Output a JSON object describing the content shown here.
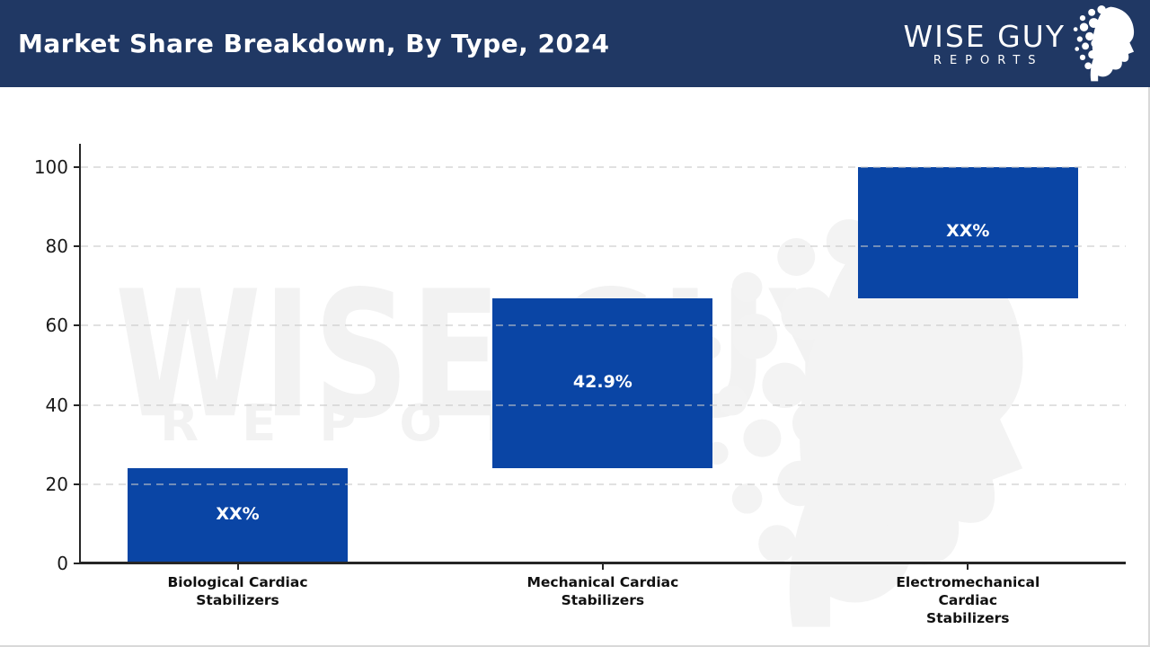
{
  "header": {
    "title": "Market Share Breakdown, By Type, 2024",
    "logo": {
      "title": "WISE GUY",
      "subtitle": "REPORTS"
    }
  },
  "watermark": {
    "title": "WISE GUY",
    "subtitle": "REPORTS"
  },
  "chart_data": {
    "type": "bar",
    "subtype": "waterfall-floating-segments",
    "title": "Market Share Breakdown, By Type, 2024",
    "categories": [
      "Biological Cardiac Stabilizers",
      "Mechanical Cardiac Stabilizers",
      "Electromechanical Cardiac Stabilizers"
    ],
    "category_label_lines": [
      [
        "Biological Cardiac",
        "Stabilizers"
      ],
      [
        "Mechanical Cardiac",
        "Stabilizers"
      ],
      [
        "Electromechanical",
        "Cardiac",
        "Stabilizers"
      ]
    ],
    "segments": [
      {
        "start": 0,
        "end": 24,
        "label": "XX%"
      },
      {
        "start": 24,
        "end": 66.9,
        "label": "42.9%"
      },
      {
        "start": 66.9,
        "end": 100,
        "label": "XX%"
      }
    ],
    "values": [
      24,
      42.9,
      33.1
    ],
    "value_labels": [
      "XX%",
      "42.9%",
      "XX%"
    ],
    "xlabel": "",
    "ylabel": "",
    "yticks": [
      0,
      20,
      40,
      60,
      80,
      100
    ],
    "ylim": [
      0,
      105
    ],
    "grid": "horizontal-dashed",
    "legend": "none",
    "bar_color": "#0a45a5"
  },
  "colors": {
    "header_bg": "#203864",
    "bar": "#0a45a5",
    "title_text": "#ffffff",
    "axis": "#262626",
    "gridline": "#cccccc",
    "tick_text": "#1a1a1a",
    "watermark": "#f2f2f2",
    "background": "#ffffff"
  }
}
